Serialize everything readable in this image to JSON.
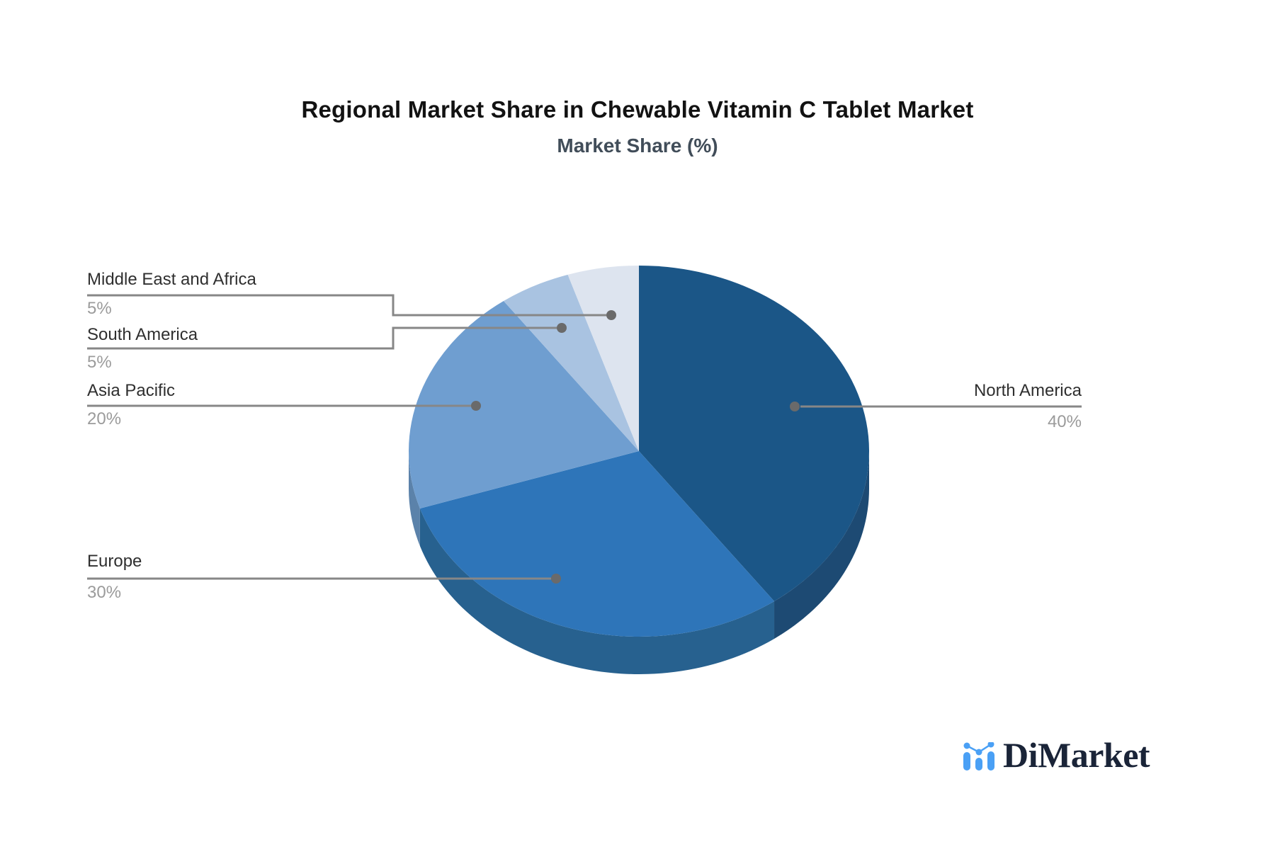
{
  "title": "Regional Market Share in Chewable Vitamin C Tablet Market",
  "subtitle": "Market Share (%)",
  "brand": {
    "name": "DiMarket",
    "icon": "bar-chart-logo-icon",
    "icon_color": "#4aa0f5",
    "text_color": "#1a2438"
  },
  "chart_data": {
    "type": "pie",
    "style": "3d",
    "title": "Regional Market Share in Chewable Vitamin C Tablet Market",
    "subtitle": "Market Share (%)",
    "unit": "%",
    "direction": "clockwise",
    "start_angle_deg": 0,
    "legend_position": "none",
    "categories": [
      "North America",
      "Europe",
      "Asia Pacific",
      "South America",
      "Middle East and Africa"
    ],
    "values": [
      40,
      30,
      20,
      5,
      5
    ],
    "series": [
      {
        "label": "North America",
        "value": 40,
        "pct_label": "40%",
        "color": "#1b5687",
        "side_color": "#1d4a73"
      },
      {
        "label": "Europe",
        "value": 30,
        "pct_label": "30%",
        "color": "#2e75b9",
        "side_color": "#27618f"
      },
      {
        "label": "Asia Pacific",
        "value": 20,
        "pct_label": "20%",
        "color": "#6f9ed0",
        "side_color": "#5b82aa"
      },
      {
        "label": "South America",
        "value": 5,
        "pct_label": "5%",
        "color": "#a9c3e1",
        "side_color": "#8ba7c7"
      },
      {
        "label": "Middle East and Africa",
        "value": 5,
        "pct_label": "5%",
        "color": "#dde4ef",
        "side_color": "#b9c4d6"
      }
    ],
    "leader_line_color": "#878787",
    "label_text_color": "#2f2f2f",
    "pct_text_color": "#9b9b9b"
  }
}
